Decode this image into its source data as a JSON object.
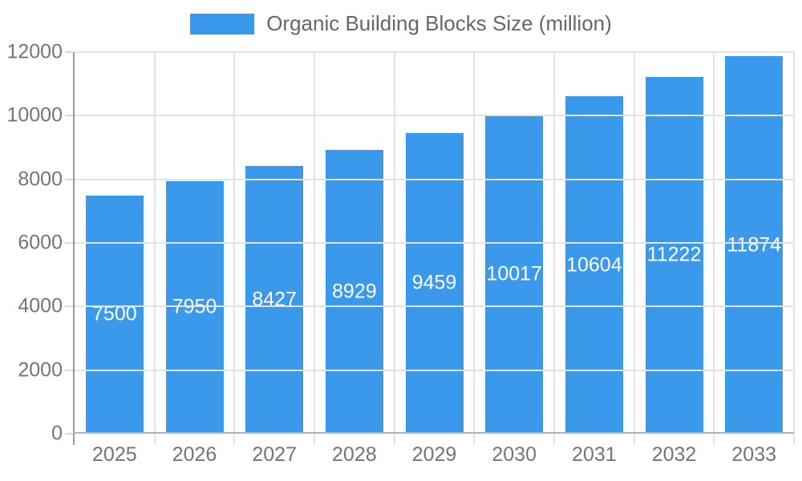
{
  "chart_data": {
    "type": "bar",
    "title": "Organic Building Blocks Size (million)",
    "legend": {
      "position": "top",
      "entries": [
        "Organic Building Blocks Size (million)"
      ]
    },
    "categories": [
      "2025",
      "2026",
      "2027",
      "2028",
      "2029",
      "2030",
      "2031",
      "2032",
      "2033"
    ],
    "values": [
      7500,
      7950,
      8427,
      8929,
      9459,
      10017,
      10604,
      11222,
      11874
    ],
    "xlabel": "",
    "ylabel": "",
    "ylim": [
      0,
      12000
    ],
    "yticks": [
      0,
      2000,
      4000,
      6000,
      8000,
      10000,
      12000
    ],
    "grid": true,
    "colors": {
      "bar": "#3B99EC",
      "value_label": "#FFFFFF",
      "axis_tick_label": "#757575",
      "legend_text": "#666666",
      "gridline": "#E3E3E3",
      "y_axis_line": "#9A9A9A",
      "x_axis_line": "#B2B2B2",
      "background": "#FFFFFF"
    }
  }
}
